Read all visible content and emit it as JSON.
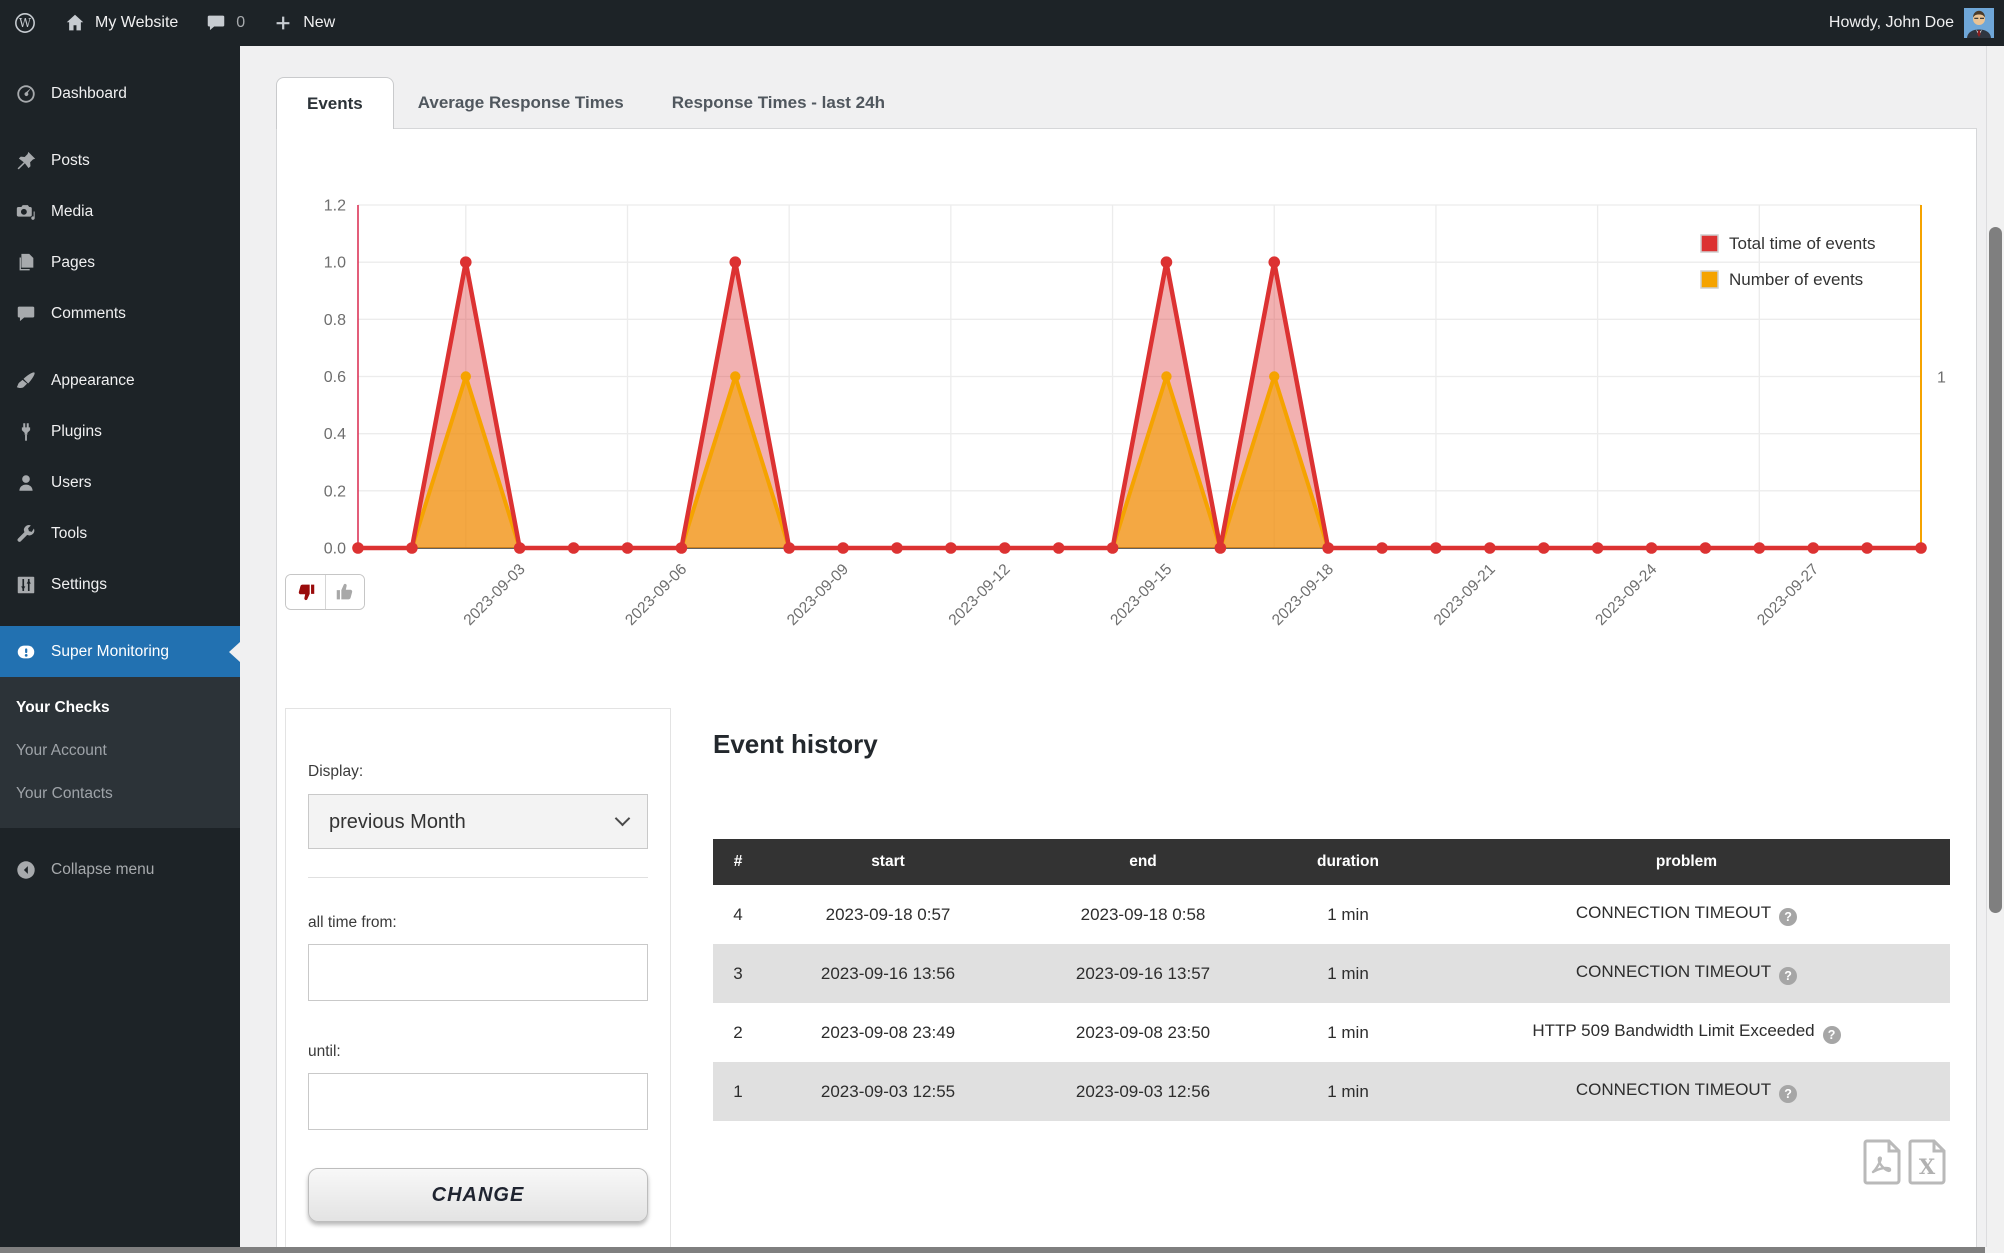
{
  "admin_bar": {
    "site_name": "My Website",
    "comments_count": "0",
    "new_label": "New",
    "howdy": "Howdy, John Doe"
  },
  "sidebar": {
    "items": [
      {
        "id": "dashboard",
        "label": "Dashboard",
        "icon": "dashboard-icon",
        "gap": false,
        "active": false
      },
      {
        "id": "posts",
        "label": "Posts",
        "icon": "pushpin-icon",
        "gap": true,
        "active": false
      },
      {
        "id": "media",
        "label": "Media",
        "icon": "camera-icon",
        "gap": false,
        "active": false
      },
      {
        "id": "pages",
        "label": "Pages",
        "icon": "pages-icon",
        "gap": false,
        "active": false
      },
      {
        "id": "comments",
        "label": "Comments",
        "icon": "comment-icon",
        "gap": false,
        "active": false
      },
      {
        "id": "appearance",
        "label": "Appearance",
        "icon": "brush-icon",
        "gap": true,
        "active": false
      },
      {
        "id": "plugins",
        "label": "Plugins",
        "icon": "plug-icon",
        "gap": false,
        "active": false
      },
      {
        "id": "users",
        "label": "Users",
        "icon": "user-icon",
        "gap": false,
        "active": false
      },
      {
        "id": "tools",
        "label": "Tools",
        "icon": "wrench-icon",
        "gap": false,
        "active": false
      },
      {
        "id": "settings",
        "label": "Settings",
        "icon": "sliders-icon",
        "gap": false,
        "active": false
      },
      {
        "id": "super-monitoring",
        "label": "Super Monitoring",
        "icon": "alert-icon",
        "gap": true,
        "active": true
      }
    ],
    "submenu": [
      {
        "label": "Your Checks",
        "active": true
      },
      {
        "label": "Your Account",
        "active": false
      },
      {
        "label": "Your Contacts",
        "active": false
      }
    ],
    "collapse_label": "Collapse menu",
    "active_color": "#2271b1"
  },
  "tabs": [
    {
      "label": "Events",
      "active": true
    },
    {
      "label": "Average Response Times",
      "active": false
    },
    {
      "label": "Response Times - last 24h",
      "active": false
    }
  ],
  "chart_data": {
    "type": "area",
    "x": [
      "2023-09-01",
      "2023-09-02",
      "2023-09-03",
      "2023-09-04",
      "2023-09-05",
      "2023-09-06",
      "2023-09-07",
      "2023-09-08",
      "2023-09-09",
      "2023-09-10",
      "2023-09-11",
      "2023-09-12",
      "2023-09-13",
      "2023-09-14",
      "2023-09-15",
      "2023-09-16",
      "2023-09-17",
      "2023-09-18",
      "2023-09-19",
      "2023-09-20",
      "2023-09-21",
      "2023-09-22",
      "2023-09-23",
      "2023-09-24",
      "2023-09-25",
      "2023-09-26",
      "2023-09-27",
      "2023-09-28",
      "2023-09-29",
      "2023-09-30"
    ],
    "x_ticks": [
      "2023-09-03",
      "2023-09-06",
      "2023-09-09",
      "2023-09-12",
      "2023-09-15",
      "2023-09-18",
      "2023-09-21",
      "2023-09-24",
      "2023-09-27"
    ],
    "series": [
      {
        "name": "Total time of events",
        "axis": "left",
        "color": "#dc3232",
        "fill": "rgba(220,50,50,0.38)",
        "values": [
          0,
          0,
          1,
          0,
          0,
          0,
          0,
          1,
          0,
          0,
          0,
          0,
          0,
          0,
          0,
          1,
          0,
          1,
          0,
          0,
          0,
          0,
          0,
          0,
          0,
          0,
          0,
          0,
          0,
          0
        ]
      },
      {
        "name": "Number of events",
        "axis": "right",
        "color": "#f5a300",
        "fill": "rgba(245,163,0,0.62)",
        "values": [
          0,
          0,
          1,
          0,
          0,
          0,
          0,
          1,
          0,
          0,
          0,
          0,
          0,
          0,
          0,
          1,
          0,
          1,
          0,
          0,
          0,
          0,
          0,
          0,
          0,
          0,
          0,
          0,
          0,
          0
        ]
      }
    ],
    "left_axis": {
      "min": 0,
      "max": 1.2,
      "ticks": [
        "0.0",
        "0.2",
        "0.4",
        "0.6",
        "0.8",
        "1.0",
        "1.2"
      ],
      "line_color": "#dc3558"
    },
    "right_axis": {
      "min": 0,
      "max": 2,
      "tick_labels": [
        "1"
      ],
      "line_color": "#f5a300"
    },
    "grid": true,
    "legend_position": "top-right",
    "title": ""
  },
  "feedback": {
    "thumbs_down_icon": "thumbs-down-icon",
    "thumbs_up_icon": "thumbs-up-icon"
  },
  "filter_panel": {
    "display_label": "Display:",
    "display_value": "previous Month",
    "from_label": "all time from:",
    "from_value": "",
    "until_label": "until:",
    "until_value": "",
    "change_label": "CHANGE"
  },
  "event_history": {
    "title": "Event history",
    "columns": [
      "#",
      "start",
      "end",
      "duration",
      "problem"
    ],
    "rows": [
      {
        "num": "4",
        "start": "2023-09-18 0:57",
        "end": "2023-09-18 0:58",
        "duration": "1 min",
        "problem": "CONNECTION TIMEOUT"
      },
      {
        "num": "3",
        "start": "2023-09-16 13:56",
        "end": "2023-09-16 13:57",
        "duration": "1 min",
        "problem": "CONNECTION TIMEOUT"
      },
      {
        "num": "2",
        "start": "2023-09-08 23:49",
        "end": "2023-09-08 23:50",
        "duration": "1 min",
        "problem": "HTTP 509 Bandwidth Limit Exceeded"
      },
      {
        "num": "1",
        "start": "2023-09-03 12:55",
        "end": "2023-09-03 12:56",
        "duration": "1 min",
        "problem": "CONNECTION TIMEOUT"
      }
    ],
    "help_icon": "?",
    "exports": [
      "pdf-export-icon",
      "excel-export-icon"
    ]
  }
}
